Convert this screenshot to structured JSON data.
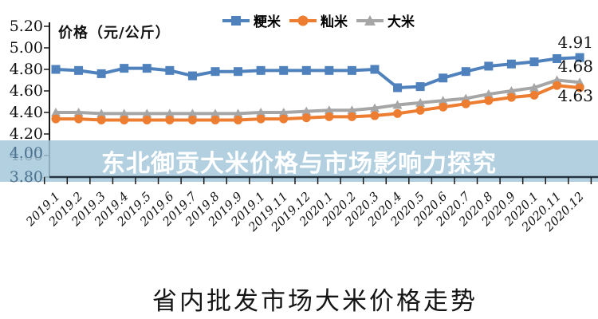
{
  "banner": {
    "title": "东北御贡大米价格与市场影响力探究",
    "bg_color": "#a4c7da",
    "text_color": "#ffffff"
  },
  "footer_title": "省内批发市场大米价格走势",
  "chart_data": {
    "type": "line",
    "title": "省内批发市场大米价格走势",
    "y_axis_title": "价格（元/公斤）",
    "ylim": [
      3.8,
      5.2
    ],
    "grid": false,
    "legend_position": "top",
    "y_ticks": [
      "5.20",
      "5.00",
      "4.80",
      "4.60",
      "4.40",
      "4.20",
      "4.00",
      "3.80"
    ],
    "categories": [
      "2019.1",
      "2019.2",
      "2019.3",
      "2019.4",
      "2019.5",
      "2019.6",
      "2019.7",
      "2019.8",
      "2019.9",
      "2019.1",
      "2019.11",
      "2019.12",
      "2020.1",
      "2020.2",
      "2020.3",
      "2020.4",
      "2020.5",
      "2020.6",
      "2020.7",
      "2020.8",
      "2020.9",
      "2020.1",
      "2020.11",
      "2020.12"
    ],
    "series": [
      {
        "name": "粳米",
        "color": "#4f81bd",
        "marker": "square",
        "end_label": "4.91",
        "values": [
          4.8,
          4.79,
          4.76,
          4.81,
          4.81,
          4.79,
          4.74,
          4.78,
          4.78,
          4.79,
          4.79,
          4.79,
          4.79,
          4.79,
          4.8,
          4.63,
          4.64,
          4.72,
          4.78,
          4.83,
          4.85,
          4.87,
          4.9,
          4.91
        ]
      },
      {
        "name": "籼米",
        "color": "#ed7d31",
        "marker": "circle",
        "end_label": "4.63",
        "values": [
          4.34,
          4.34,
          4.33,
          4.33,
          4.33,
          4.33,
          4.33,
          4.33,
          4.33,
          4.34,
          4.34,
          4.35,
          4.36,
          4.36,
          4.37,
          4.39,
          4.42,
          4.45,
          4.48,
          4.51,
          4.54,
          4.56,
          4.65,
          4.63
        ]
      },
      {
        "name": "大米",
        "color": "#a6a6a6",
        "marker": "triangle",
        "end_label": "4.68",
        "values": [
          4.4,
          4.4,
          4.39,
          4.39,
          4.39,
          4.39,
          4.39,
          4.39,
          4.39,
          4.4,
          4.4,
          4.41,
          4.42,
          4.42,
          4.44,
          4.47,
          4.49,
          4.51,
          4.53,
          4.57,
          4.6,
          4.63,
          4.7,
          4.68
        ]
      }
    ]
  }
}
